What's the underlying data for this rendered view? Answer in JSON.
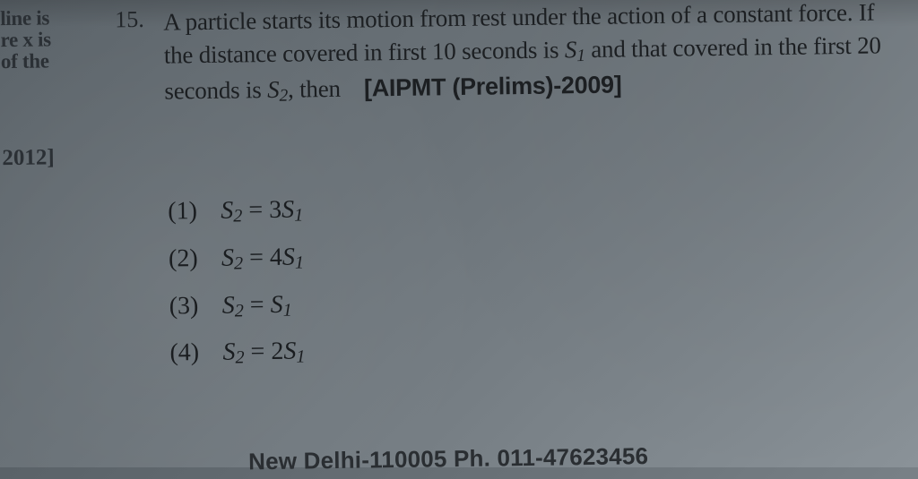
{
  "leftFragments": {
    "line1": "line is",
    "line2": "re x is",
    "line3": "of the"
  },
  "year": "2012]",
  "question": {
    "number": "15.",
    "text_part1": "A particle starts its motion from rest under the action of a constant force. If the distance covered in first 10 seconds is ",
    "s1": "S",
    "sub1": "1",
    "text_part2": " and that covered in the first 20 seconds is ",
    "s2": "S",
    "sub2": "2",
    "text_part3": ", then",
    "tag": "[AIPMT (Prelims)-2009]"
  },
  "options": {
    "o1": {
      "n": "(1)",
      "lhs": "S",
      "lsub": "2",
      "eq": " = 3",
      "rhs": "S",
      "rsub": "1"
    },
    "o2": {
      "n": "(2)",
      "lhs": "S",
      "lsub": "2",
      "eq": " = 4",
      "rhs": "S",
      "rsub": "1"
    },
    "o3": {
      "n": "(3)",
      "lhs": "S",
      "lsub": "2",
      "eq": " = ",
      "rhs": "S",
      "rsub": "1"
    },
    "o4": {
      "n": "(4)",
      "lhs": "S",
      "lsub": "2",
      "eq": " = 2",
      "rhs": "S",
      "rsub": "1"
    }
  },
  "footer": "New Delhi-110005 Ph. 011-47623456"
}
